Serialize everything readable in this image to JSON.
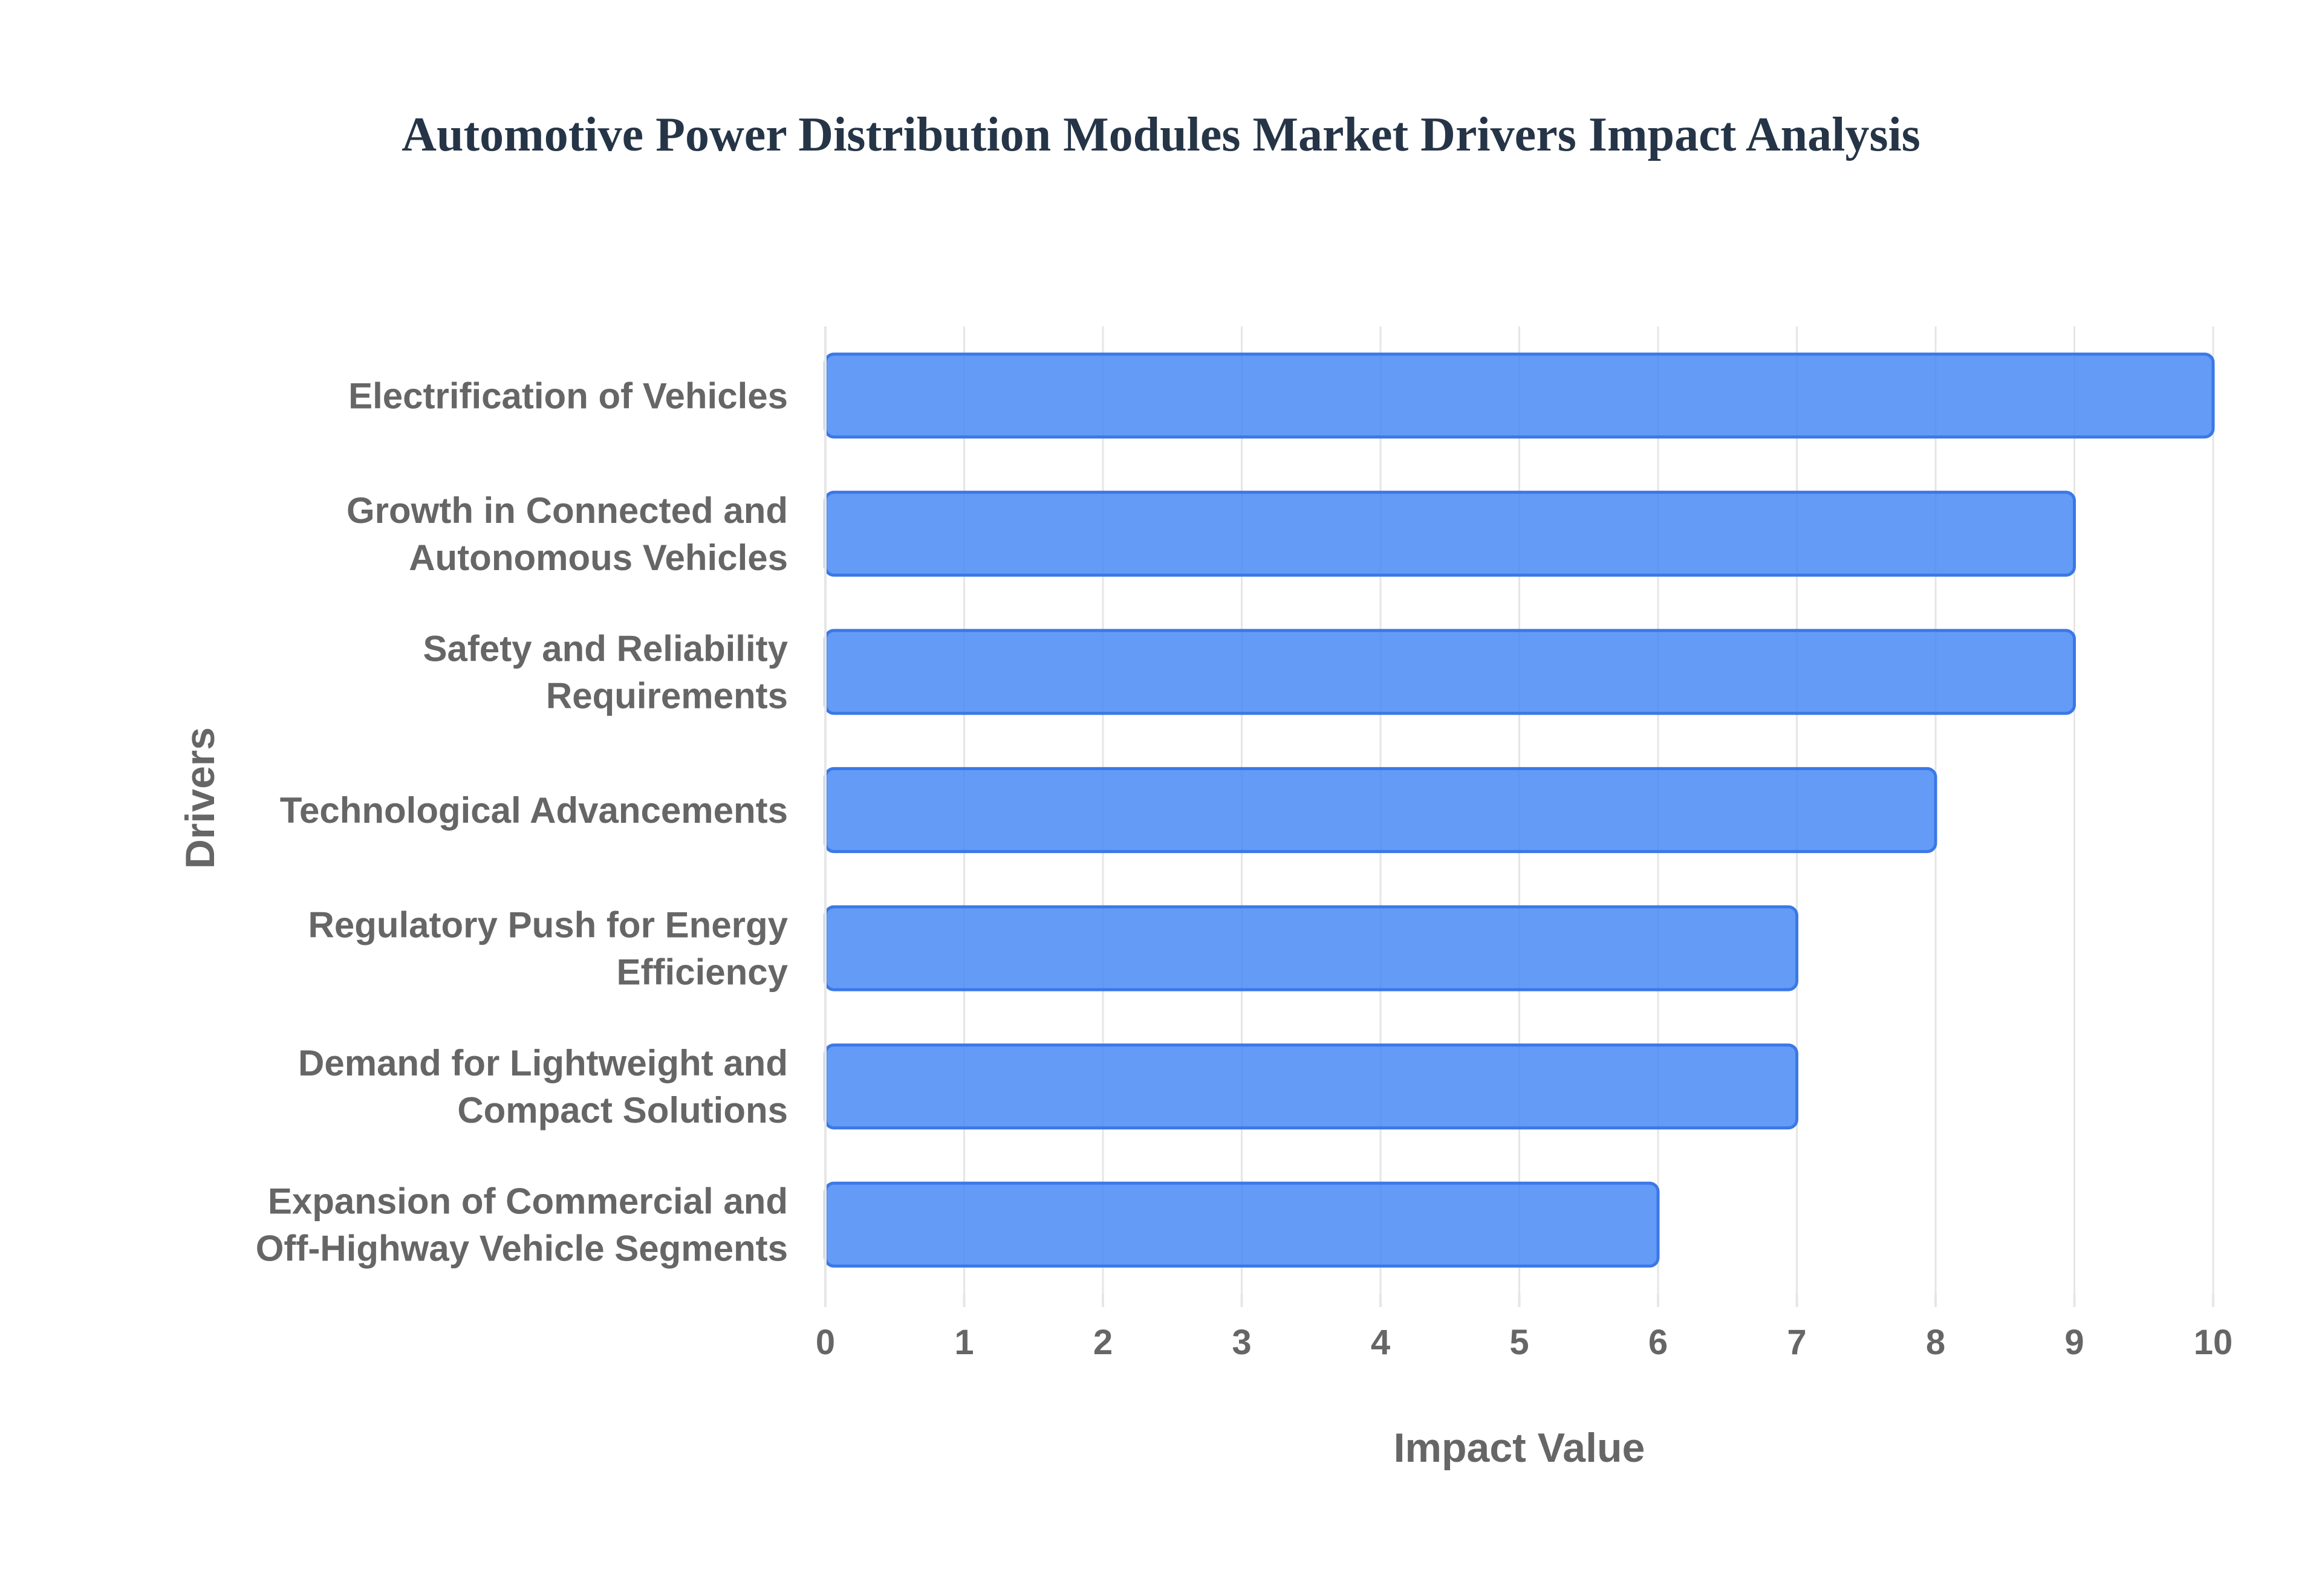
{
  "chart_data": {
    "type": "bar",
    "orientation": "horizontal",
    "title": "Automotive Power Distribution Modules Market Drivers Impact Analysis",
    "xlabel": "Impact Value",
    "ylabel": "Drivers",
    "categories": [
      "Electrification of Vehicles",
      "Growth in Connected and Autonomous Vehicles",
      "Safety and Reliability Requirements",
      "Technological Advancements",
      "Regulatory Push for Energy Efficiency",
      "Demand for Lightweight and Compact Solutions",
      "Expansion of Commercial and Off-Highway Vehicle Segments"
    ],
    "category_lines": [
      [
        "Electrification of Vehicles"
      ],
      [
        "Growth in Connected and",
        "Autonomous Vehicles"
      ],
      [
        "Safety and Reliability",
        "Requirements"
      ],
      [
        "Technological Advancements"
      ],
      [
        "Regulatory Push for Energy",
        "Efficiency"
      ],
      [
        "Demand for Lightweight and",
        "Compact Solutions"
      ],
      [
        "Expansion of Commercial and",
        "Off-Highway Vehicle Segments"
      ]
    ],
    "values": [
      10,
      9,
      9,
      8,
      7,
      7,
      6
    ],
    "xlim": [
      0,
      10
    ],
    "xticks": [
      "0",
      "1",
      "2",
      "3",
      "4",
      "5",
      "6",
      "7",
      "8",
      "9",
      "10"
    ],
    "grid": true,
    "legend": "none",
    "colors": {
      "bar_fill": "#4285f4",
      "bar_stroke": "#3b78e7",
      "grid": "#e6e6e6",
      "text": "#666666",
      "title": "#253547"
    }
  }
}
